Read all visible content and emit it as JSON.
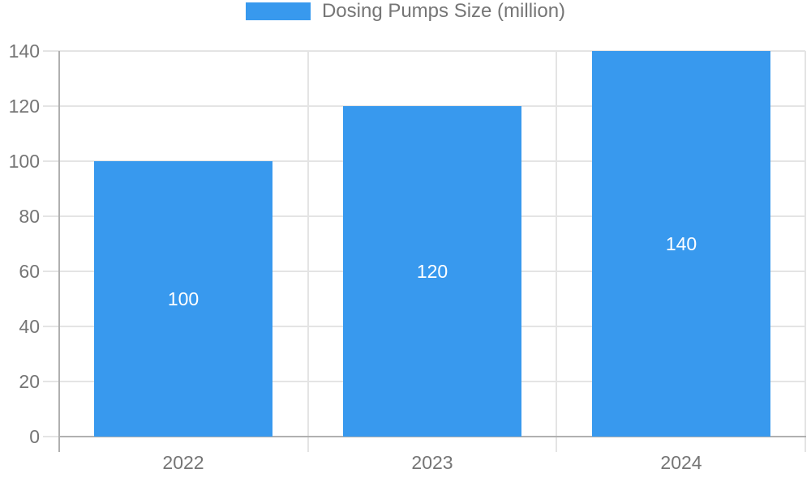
{
  "legend": {
    "label": "Dosing Pumps Size (million)",
    "swatch_color": "#3899ee"
  },
  "chart_data": {
    "type": "bar",
    "title": "Dosing Pumps Size (million)",
    "categories": [
      "2022",
      "2023",
      "2024"
    ],
    "values": [
      100,
      120,
      140
    ],
    "series": [
      {
        "name": "Dosing Pumps Size (million)",
        "values": [
          100,
          120,
          140
        ]
      }
    ],
    "data_labels": [
      "100",
      "120",
      "140"
    ],
    "xlabel": "",
    "ylabel": "",
    "ylim": [
      0,
      140
    ],
    "yticks": [
      0,
      20,
      40,
      60,
      80,
      100,
      120,
      140
    ],
    "grid": true,
    "legend_position": "top",
    "colors": {
      "bar": "#3899ee",
      "grid": "#e4e4e4",
      "axis": "#b0b0b0",
      "tick_text": "#757575",
      "bar_label_text": "#ffffff",
      "background": "#ffffff"
    }
  }
}
